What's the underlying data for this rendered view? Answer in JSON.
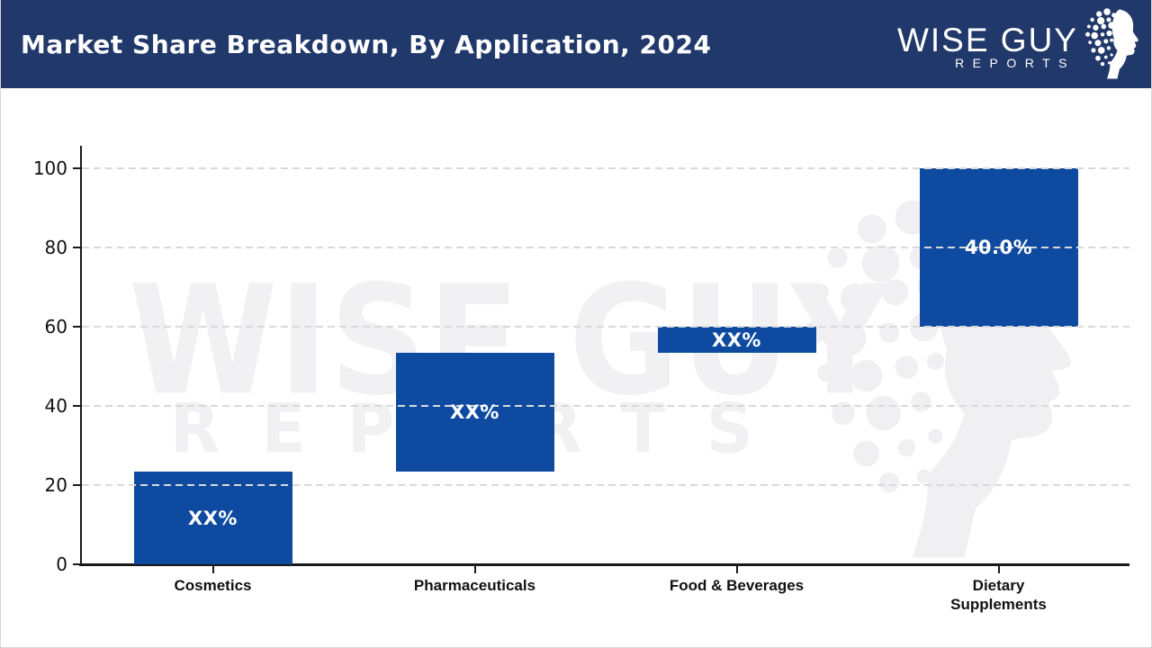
{
  "header": {
    "title": "Market Share Breakdown, By Application, 2024",
    "bg_color": "#21386b",
    "logo": {
      "line1": "WISE GUY",
      "line2": "REPORTS"
    }
  },
  "watermark": {
    "line1": "WISE GUY",
    "line2": "REPORTS"
  },
  "chart_data": {
    "type": "bar",
    "subtype": "waterfall",
    "title": "Market Share Breakdown, By Application, 2024",
    "categories": [
      "Cosmetics",
      "Pharmaceuticals",
      "Food & Beverages",
      "Dietary\nSupplements"
    ],
    "segments": [
      {
        "start": 0,
        "end": 23.3,
        "label": "XX%"
      },
      {
        "start": 23.3,
        "end": 53.3,
        "label": "XX%"
      },
      {
        "start": 53.3,
        "end": 60,
        "label": "XX%"
      },
      {
        "start": 60,
        "end": 100,
        "label": "40.0%"
      }
    ],
    "yticks": [
      0,
      20,
      40,
      60,
      80,
      100
    ],
    "ylim": [
      0,
      100
    ],
    "xlabel": "",
    "ylabel": "",
    "legend": "none",
    "grid": "horizontal-dashed",
    "bar_color": "#0d4aa0",
    "grid_color": "#d9d9d9",
    "label_color": "#ffffff"
  }
}
